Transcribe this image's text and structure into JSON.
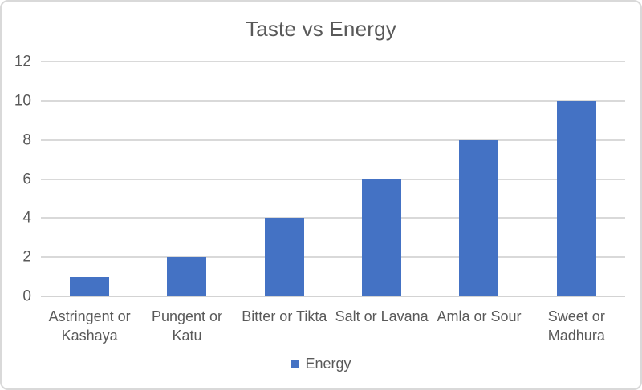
{
  "chart_data": {
    "type": "bar",
    "title": "Taste vs Energy",
    "categories": [
      "Astringent or Kashaya",
      "Pungent or Katu",
      "Bitter or Tikta",
      "Salt or Lavana",
      "Amla or Sour",
      "Sweet or Madhura"
    ],
    "category_label_lines": [
      [
        "Astringent or",
        "Kashaya"
      ],
      [
        "Pungent or",
        "Katu"
      ],
      [
        "Bitter or Tikta"
      ],
      [
        "Salt or Lavana"
      ],
      [
        "Amla or Sour"
      ],
      [
        "Sweet or",
        "Madhura"
      ]
    ],
    "series": [
      {
        "name": "Energy",
        "values": [
          1,
          2,
          4,
          6,
          8,
          10
        ]
      }
    ],
    "xlabel": "",
    "ylabel": "",
    "ylim": [
      0,
      12
    ],
    "yticks": [
      0,
      2,
      4,
      6,
      8,
      10,
      12
    ],
    "grid": "horizontal",
    "legend_position": "bottom",
    "colors": {
      "bar": "#4472c4",
      "gridline": "#d9d9d9",
      "text": "#595959",
      "border": "#d9d9d9",
      "background": "#ffffff"
    }
  }
}
